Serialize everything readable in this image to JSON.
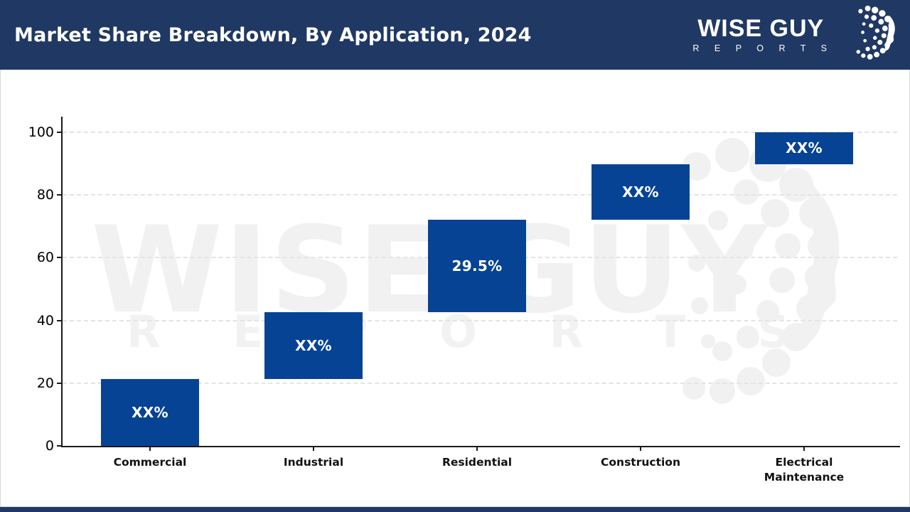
{
  "header": {
    "title": "Market Share Breakdown, By Application, 2024",
    "logo": {
      "primary": "WISE GUY",
      "secondary": "R E P O R T S"
    }
  },
  "watermark": {
    "primary": "WISE GUY",
    "secondary": "R E P O R T S"
  },
  "colors": {
    "header_bg": "#203864",
    "footer_bg": "#203864",
    "bar_blue": "#074394",
    "bar_label": "#ffffff",
    "grid": "#e4e4e4",
    "axis": "#1a1a1a",
    "watermark": "#f1f1f1"
  },
  "chart_data": {
    "type": "bar",
    "subtype": "floating-segment-waterfall",
    "title": "Market Share Breakdown, By Application, 2024",
    "categories": [
      "Commercial",
      "Industrial",
      "Residential",
      "Construction",
      "Electrical\nMaintenance"
    ],
    "bars": [
      {
        "category": "Commercial",
        "start": 0,
        "end": 21.3,
        "label": "XX%"
      },
      {
        "category": "Industrial",
        "start": 21.3,
        "end": 42.7,
        "label": "XX%"
      },
      {
        "category": "Residential",
        "start": 42.7,
        "end": 72.2,
        "label": "29.5%"
      },
      {
        "category": "Construction",
        "start": 72.2,
        "end": 89.8,
        "label": "XX%"
      },
      {
        "category": "Electrical\nMaintenance",
        "start": 89.8,
        "end": 100,
        "label": "XX%"
      }
    ],
    "yticks": [
      0,
      20,
      40,
      60,
      80,
      100
    ],
    "ylim": [
      0,
      105
    ],
    "xlabel": "",
    "ylabel": "",
    "grid": "horizontal dashed",
    "legend": null,
    "bar_color": "#074394",
    "bar_label_color": "#ffffff"
  }
}
